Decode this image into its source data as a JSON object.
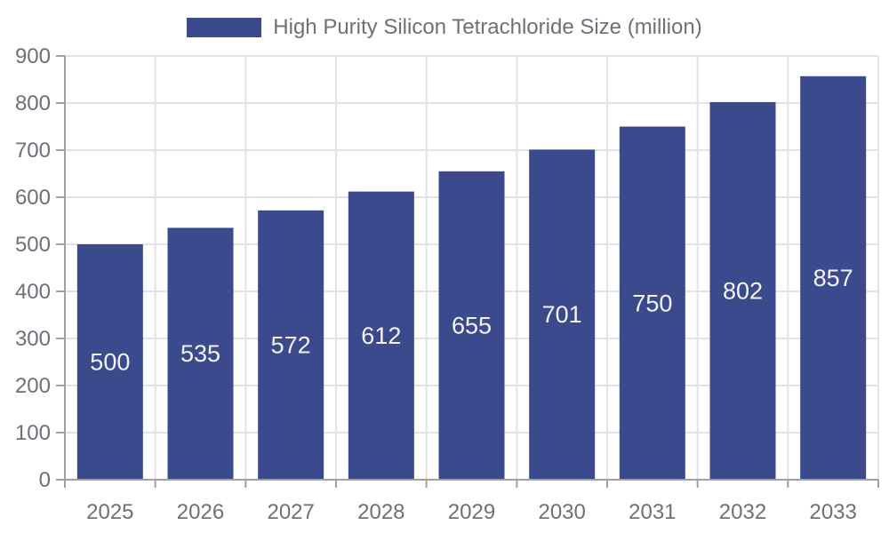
{
  "chart_data": {
    "type": "bar",
    "legend": "High Purity Silicon Tetrachloride Size (million)",
    "categories": [
      "2025",
      "2026",
      "2027",
      "2028",
      "2029",
      "2030",
      "2031",
      "2032",
      "2033"
    ],
    "values": [
      500,
      535,
      572,
      612,
      655,
      701,
      750,
      802,
      857
    ],
    "xlabel": "",
    "ylabel": "",
    "ylim": [
      0,
      900
    ],
    "y_tick_step": 100,
    "grid": true,
    "legend_position": "top",
    "value_labels_position": "inside-center",
    "colors": {
      "bar": "#3A4A8C",
      "axis": "#A0A0A0",
      "grid": "#E2E2E8",
      "tick_label": "#6E7079",
      "value_label": "#F4F4F6",
      "background": "#FFFFFF"
    }
  }
}
